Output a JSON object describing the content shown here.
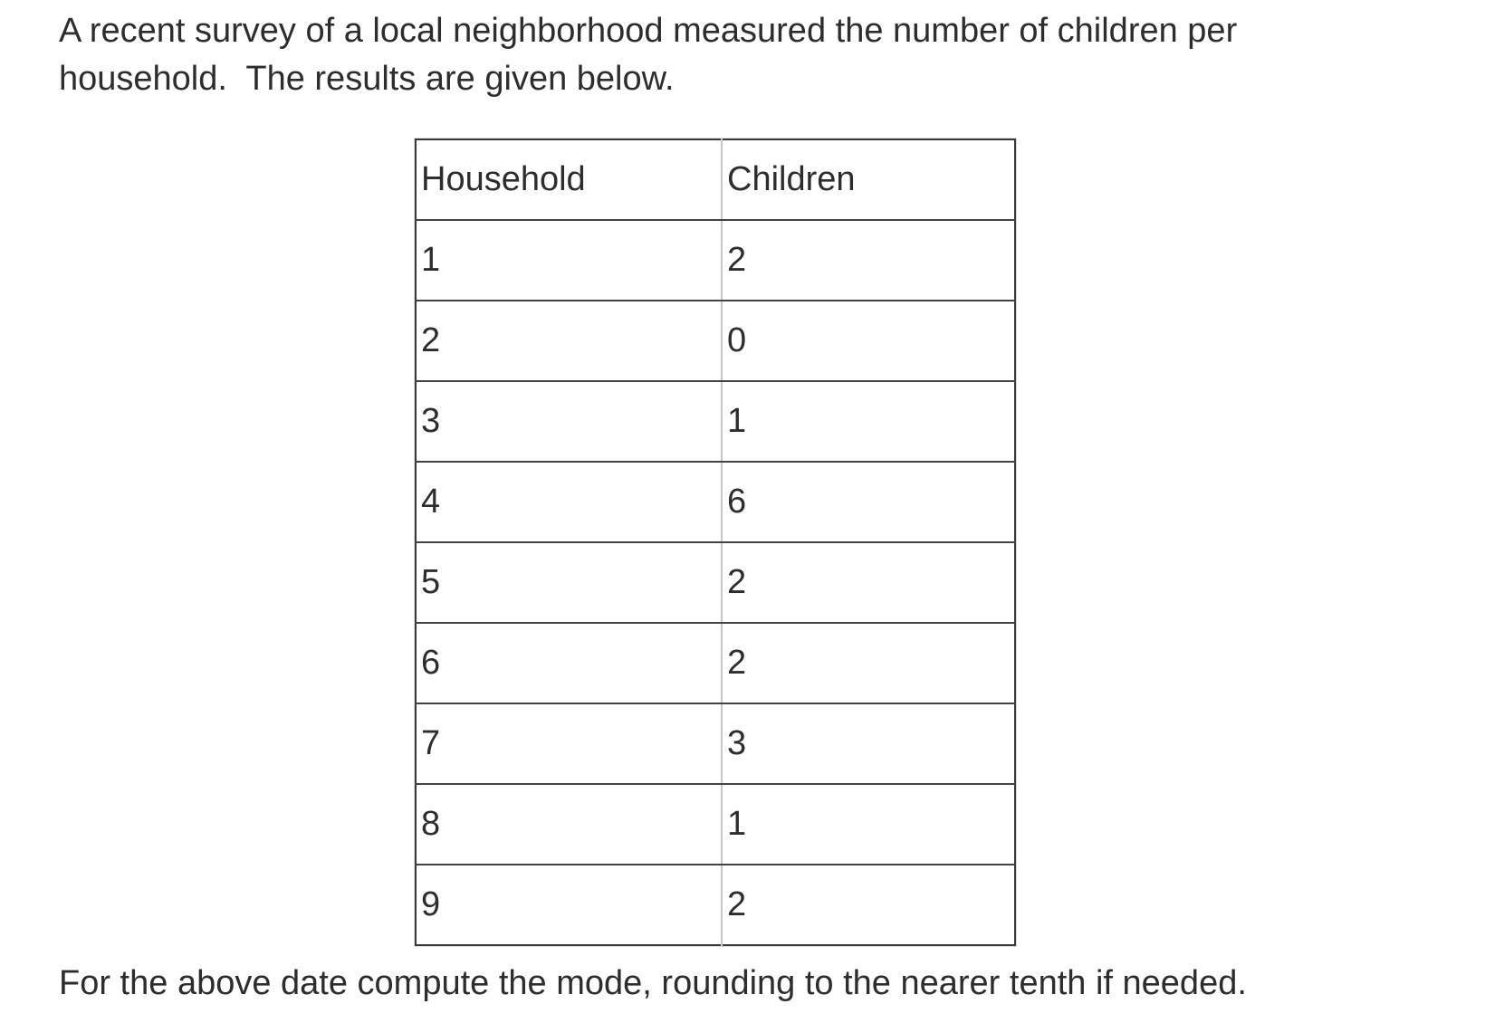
{
  "intro": "A recent survey of a local neighborhood measured the number of children per\nhousehold.  The results are given below.",
  "question": "For the above date compute the mode, rounding to the nearer tenth if needed.",
  "table": {
    "headers": [
      "Household",
      "Children"
    ],
    "rows": [
      [
        "1",
        "2"
      ],
      [
        "2",
        "0"
      ],
      [
        "3",
        "1"
      ],
      [
        "4",
        "6"
      ],
      [
        "5",
        "2"
      ],
      [
        "6",
        "2"
      ],
      [
        "7",
        "3"
      ],
      [
        "8",
        "1"
      ],
      [
        "9",
        "2"
      ]
    ]
  },
  "colors": {
    "text": "#2d2d2d",
    "table_outer_border": "#383838",
    "table_row_border": "#434343",
    "table_column_divider": "#c5c5c5",
    "background": "#ffffff"
  }
}
